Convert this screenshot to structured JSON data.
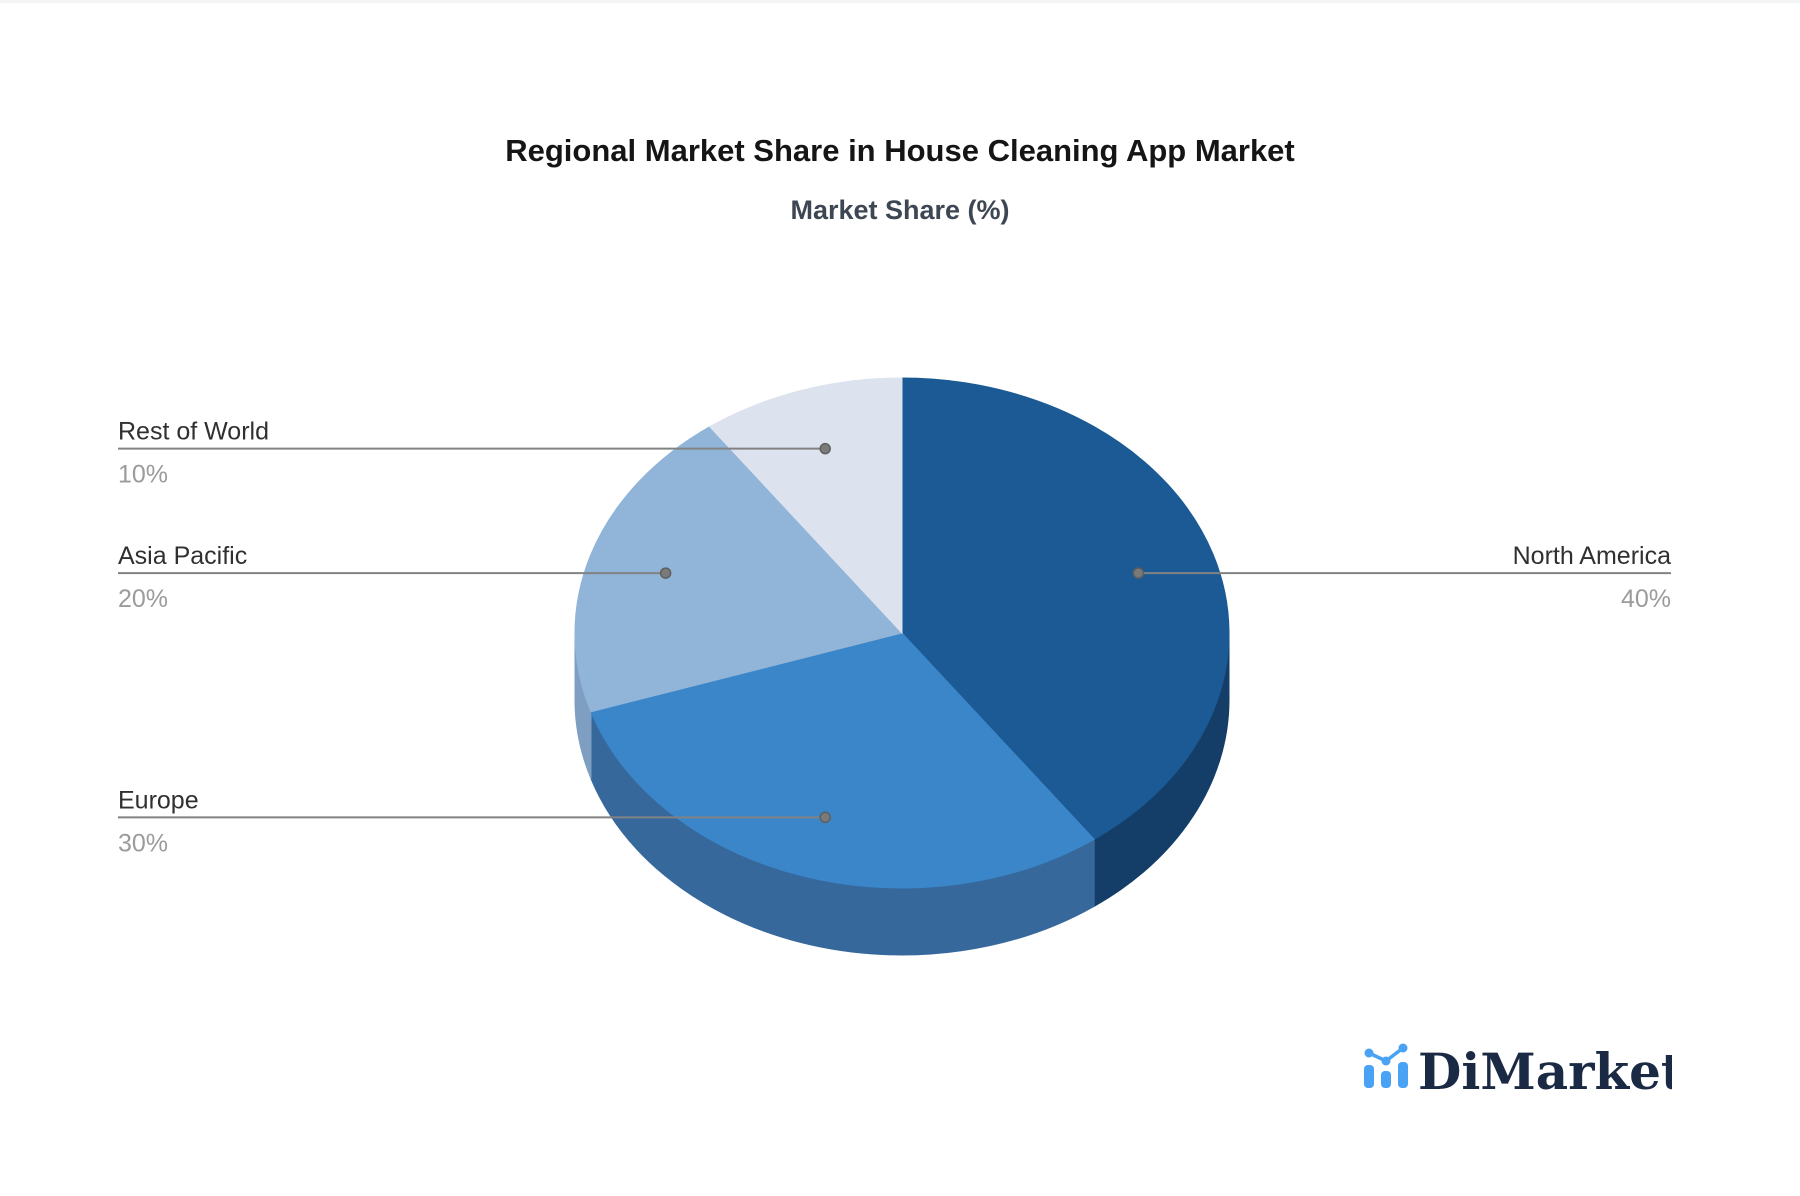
{
  "title": "Regional Market Share in House Cleaning App Market",
  "subtitle": "Market Share (%)",
  "chart_data": {
    "type": "pie",
    "style": "3d",
    "title": "Regional Market Share in House Cleaning App Market",
    "subtitle": "Market Share (%)",
    "unit": "%",
    "start_angle_deg": 0,
    "direction": "clockwise",
    "legend": "none",
    "slices": [
      {
        "label": "North America",
        "value": 40,
        "pct_label": "40%",
        "color": "#1b5a94",
        "side_color": "#143e68",
        "label_side": "right"
      },
      {
        "label": "Europe",
        "value": 30,
        "pct_label": "30%",
        "color": "#3a86c8",
        "side_color": "#36689b",
        "label_side": "left"
      },
      {
        "label": "Asia Pacific",
        "value": 20,
        "pct_label": "20%",
        "color": "#91b4d9",
        "side_color": "#7f9fc2",
        "label_side": "left"
      },
      {
        "label": "Rest of World",
        "value": 10,
        "pct_label": "10%",
        "color": "#dde3ee",
        "side_color": "#c5cedd",
        "label_side": "left"
      }
    ],
    "label_line_color": "#828282",
    "label_dot_color": "#7a7a7a",
    "label_name_color": "#303030",
    "label_pct_color": "#9b9b9b"
  },
  "logo": {
    "text": "DiMarket",
    "icon": "mini-bar-line-chart-icon",
    "accent_color": "#4aa2f5",
    "text_color": "#1b2a44"
  }
}
